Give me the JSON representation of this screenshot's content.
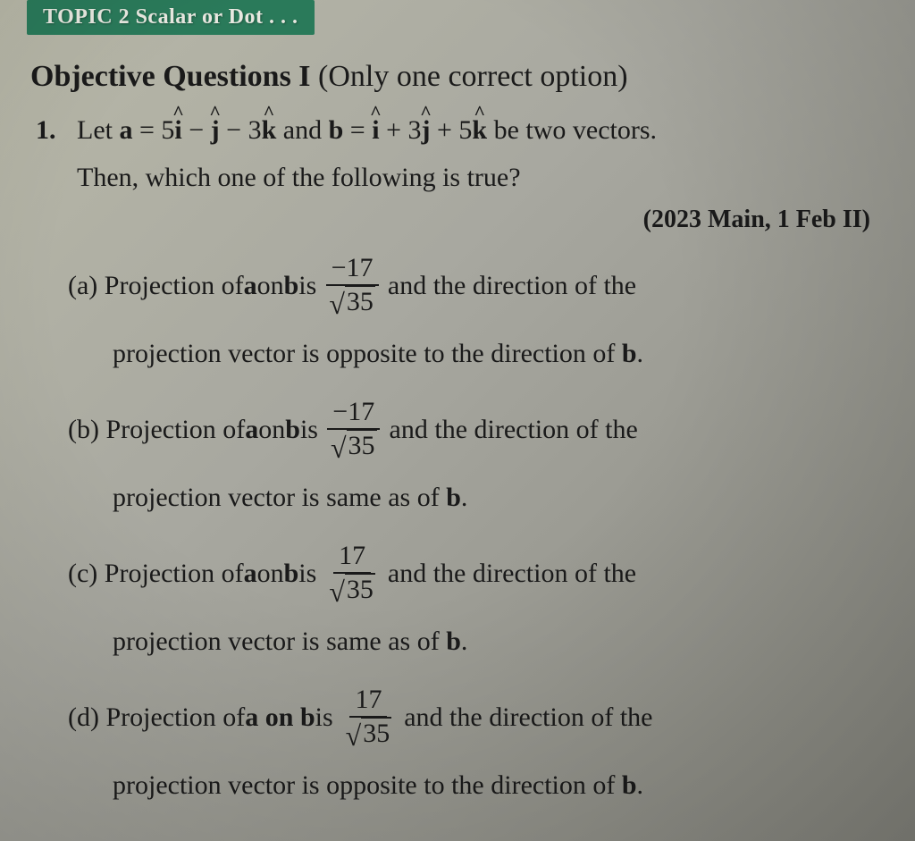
{
  "topic_banner": "TOPIC 2   Scalar or Dot . . .",
  "section": {
    "title": "Objective Questions I",
    "subtitle": "(Only one correct option)"
  },
  "question": {
    "number": "1.",
    "line1_prefix": "Let ",
    "vec_a_lhs": "a",
    "eq1": " = 5",
    "i1": "i",
    "minus1": " − ",
    "j1": "j",
    "minus2": " − 3",
    "k1": "k",
    "and_txt": " and ",
    "vec_b_lhs": "b",
    "eq2": " = ",
    "i2": "i",
    "plus1": " + 3",
    "j2": "j",
    "plus2": " + 5",
    "k2": "k",
    "line1_suffix": " be two vectors.",
    "line2": "Then, which one of the following is true?",
    "exam_ref": "(2023 Main, 1 Feb II)"
  },
  "options": {
    "a": {
      "label": "(a) Projection of ",
      "a_txt": "a",
      "on_txt": " on ",
      "b_txt": "b",
      "is_txt": " is ",
      "num": "−17",
      "den_rad": "35",
      "rest": " and the direction of the",
      "line2": "projection vector is opposite to the direction of ",
      "b2": "b",
      "period": "."
    },
    "b": {
      "label": "(b) Projection of ",
      "a_txt": "a",
      "on_txt": " on ",
      "b_txt": "b",
      "is_txt": " is ",
      "num": "−17",
      "den_rad": "35",
      "rest": " and the direction of the",
      "line2": "projection vector is same as of ",
      "b2": "b",
      "period": "."
    },
    "c": {
      "label": "(c) Projection of ",
      "a_txt": "a",
      "on_txt": " on ",
      "b_txt": "b",
      "is_txt": " is ",
      "num": "17",
      "den_rad": "35",
      "rest": " and the direction of the",
      "line2": "projection vector is same as of ",
      "b2": "b",
      "period": "."
    },
    "d": {
      "label": "(d) Projection of ",
      "a_txt": "a on b",
      "is_txt": " is ",
      "num": "17",
      "den_rad": "35",
      "rest": " and the direction of the",
      "line2": "projection vector is opposite to the direction of ",
      "b2": "b",
      "period": "."
    }
  },
  "style": {
    "bg_gradient_from": "#b8b8a8",
    "bg_gradient_to": "#888880",
    "text_color": "#1a1a1a",
    "banner_bg": "#2a7a5a",
    "banner_fg": "#e8e8e0",
    "title_fontsize": 34,
    "body_fontsize": 30,
    "fraction_rule_width": 2.5
  }
}
